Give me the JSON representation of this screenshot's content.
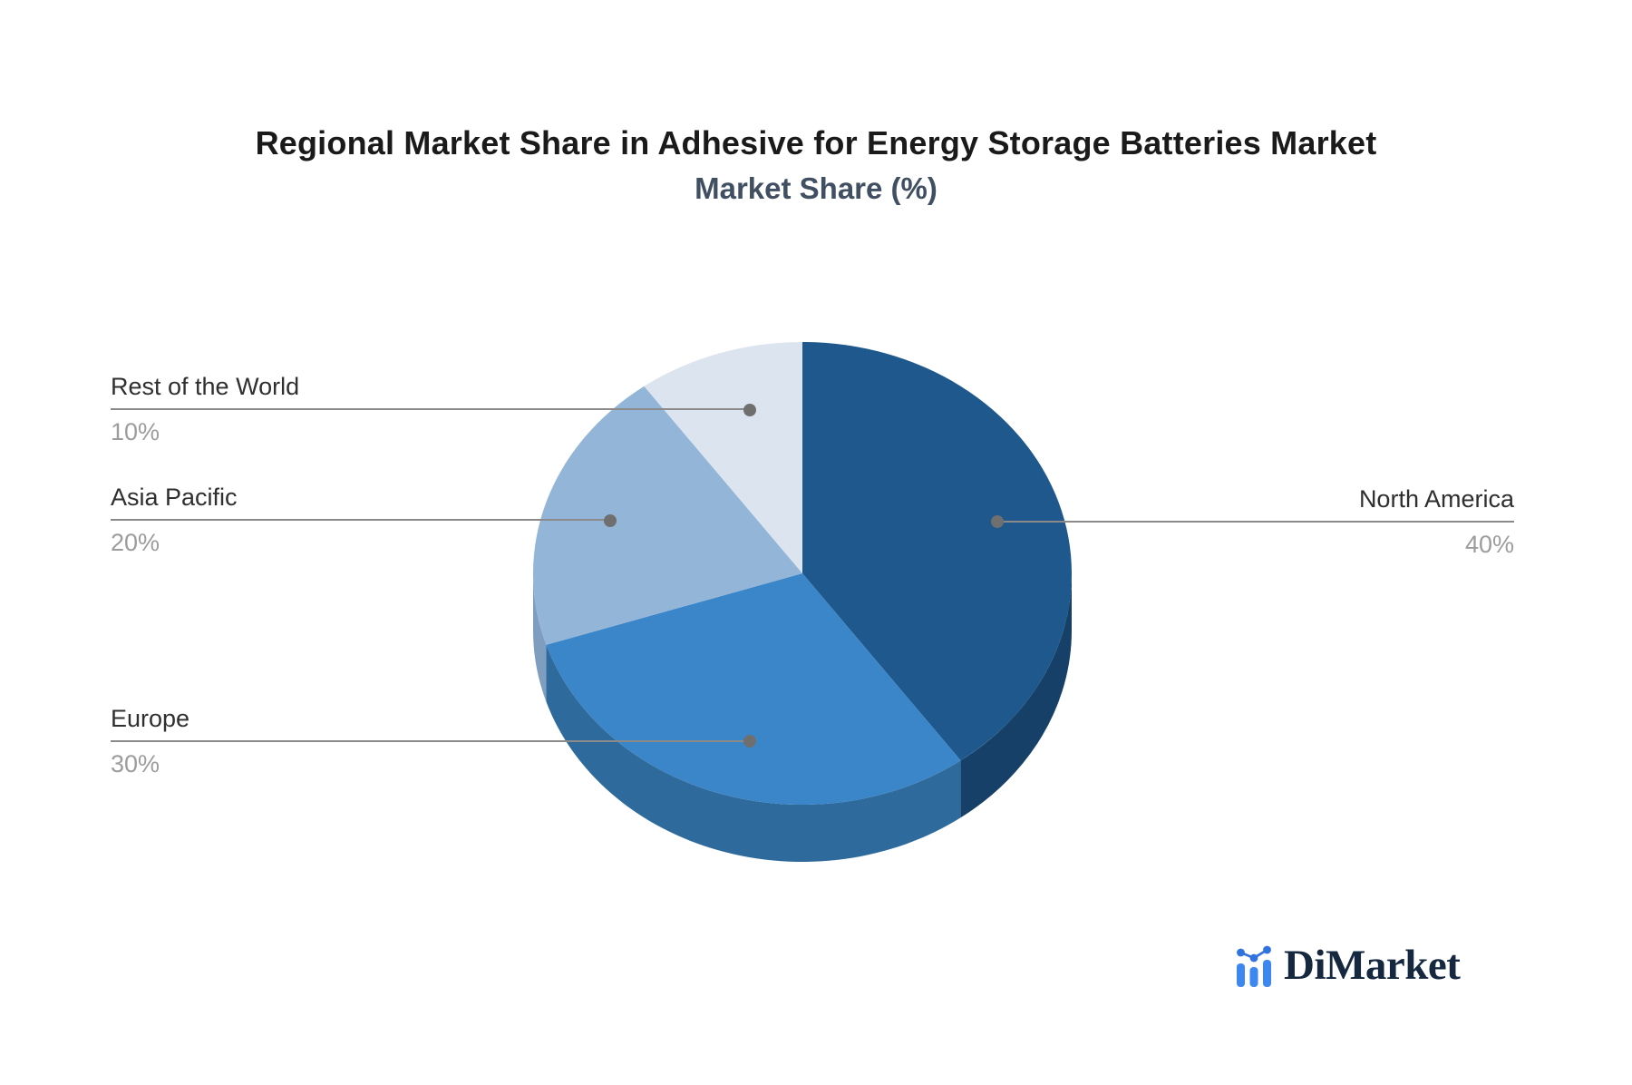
{
  "title": "Regional Market Share in Adhesive for Energy Storage Batteries Market",
  "subtitle": "Market Share (%)",
  "chart_data": {
    "type": "pie",
    "style": "3d-pie",
    "title": "Regional Market Share in Adhesive for Energy Storage Batteries Market",
    "subtitle": "Market Share (%)",
    "unit": "%",
    "start_angle": "12-oclock",
    "direction": "clockwise",
    "legend": "none",
    "series": [
      {
        "name": "North America",
        "value": 40,
        "display": "40%",
        "color": "#1e588c",
        "side_color": "#164067",
        "label_side": "right"
      },
      {
        "name": "Europe",
        "value": 30,
        "display": "30%",
        "color": "#3b86c8",
        "side_color": "#2e6b9c",
        "label_side": "left"
      },
      {
        "name": "Asia Pacific",
        "value": 20,
        "display": "20%",
        "color": "#93b5d8",
        "side_color": "#7f9dbe",
        "label_side": "left"
      },
      {
        "name": "Rest of the World",
        "value": 10,
        "display": "10%",
        "color": "#dbe4ef",
        "side_color": "#b9c8dc",
        "label_side": "left"
      }
    ],
    "leader_line_color": "#8a8a8a",
    "leader_dot_color": "#6f6f6f"
  },
  "logo": {
    "text": "DiMarket",
    "icon": "bar-line-chart-icon",
    "icon_color": "#3d87f0",
    "icon_accent_color": "#2f72e0",
    "text_color": "#152840"
  }
}
